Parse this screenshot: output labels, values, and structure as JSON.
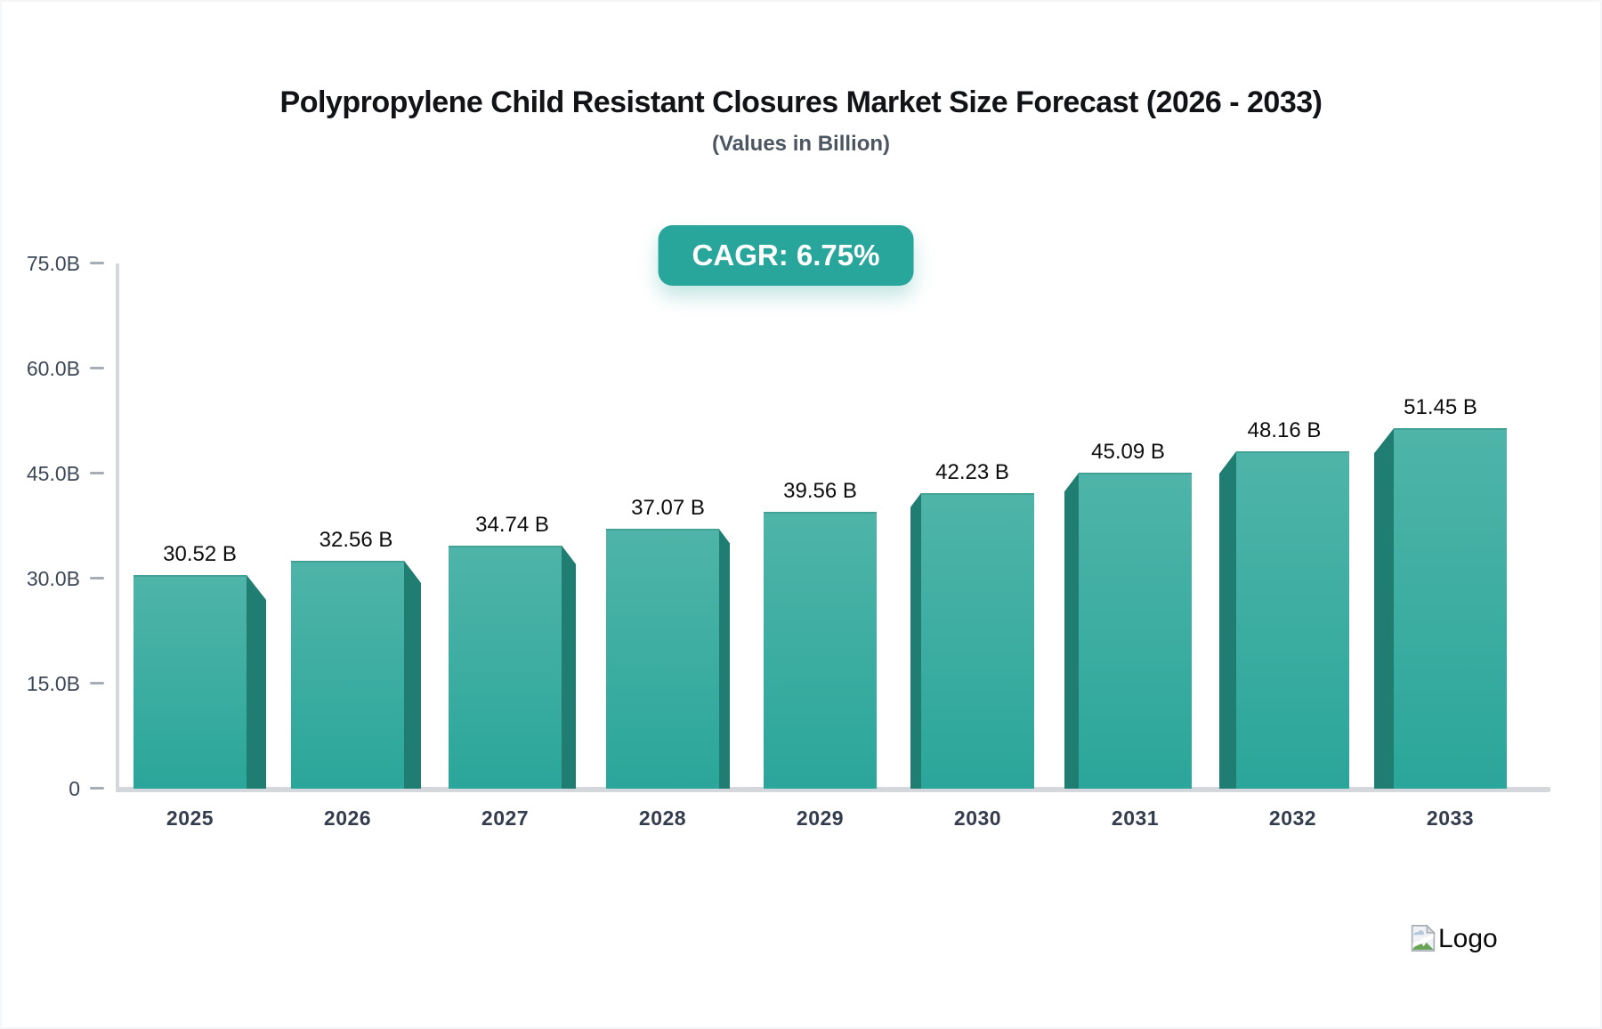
{
  "header": {
    "title": "Polypropylene Child Resistant Closures Market Size Forecast (2026 - 2033)",
    "subtitle": "(Values in Billion)",
    "cagr_label": "CAGR: 6.75%"
  },
  "footer": {
    "logo_alt": "Logo",
    "logo_icon": "broken-image-icon"
  },
  "colors": {
    "title": "#111316",
    "subtitle": "#4b5662",
    "badge_bg": "#29a69b",
    "badge_text": "#ffffff",
    "bar_face_top": "#4fb4a9",
    "bar_face_bottom": "#2ba69a",
    "bar_side": "#1f7d71",
    "axis_line": "#d4d7db",
    "tick_dash": "#a6adb5",
    "y_label": "#3d4856",
    "x_label": "#333d4d",
    "value_label": "#0d0d0d"
  },
  "chart_data": {
    "type": "bar",
    "title": "Polypropylene Child Resistant Closures Market Size Forecast (2026 - 2033)",
    "subtitle": "(Values in Billion)",
    "annotation": "CAGR: 6.75%",
    "categories": [
      "2025",
      "2026",
      "2027",
      "2028",
      "2029",
      "2030",
      "2031",
      "2032",
      "2033"
    ],
    "values": [
      30.52,
      32.56,
      34.74,
      37.07,
      39.56,
      42.23,
      45.09,
      48.16,
      51.45
    ],
    "value_labels": [
      "30.52 B",
      "32.56 B",
      "34.74 B",
      "37.07 B",
      "39.56 B",
      "42.23 B",
      "45.09 B",
      "48.16 B",
      "51.45 B"
    ],
    "xlabel": "",
    "ylabel": "",
    "ylim": [
      0,
      75
    ],
    "yticks": [
      0,
      15,
      30,
      45,
      60,
      75
    ],
    "ytick_labels": [
      "0",
      "15.0B",
      "30.0B",
      "45.0B",
      "60.0B",
      "75.0B"
    ],
    "grid": false,
    "legend": false,
    "bar_style": "3d-perspective"
  }
}
